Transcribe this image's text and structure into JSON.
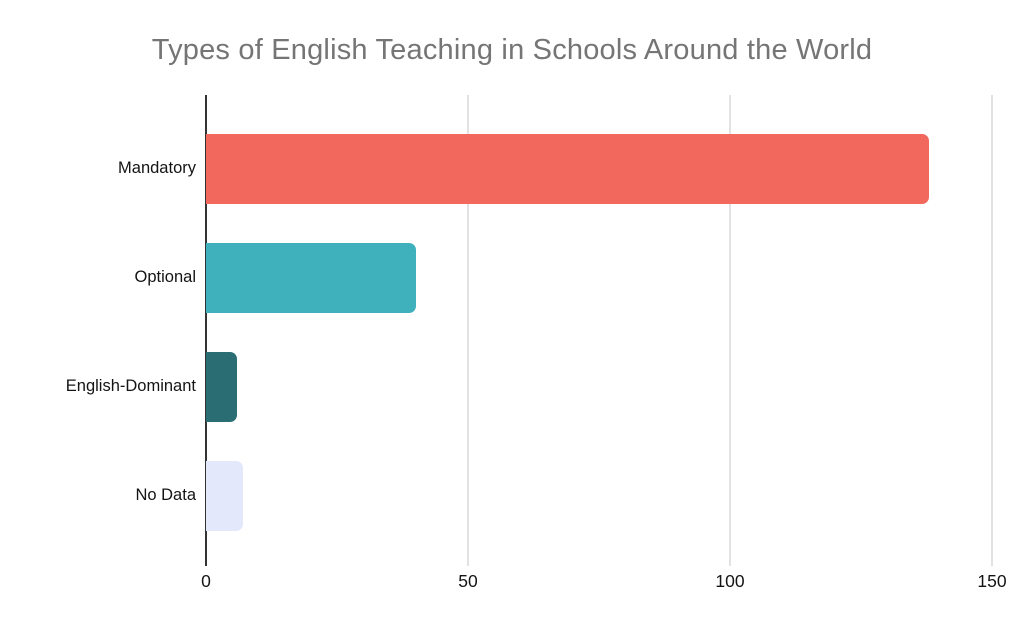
{
  "chart_data": {
    "type": "bar",
    "orientation": "horizontal",
    "title": "Types of English Teaching in Schools Around the World",
    "categories": [
      "Mandatory",
      "Optional",
      "English-Dominant",
      "No Data"
    ],
    "values": [
      138,
      40,
      6,
      7
    ],
    "xlabel": "",
    "ylabel": "",
    "xlim": [
      0,
      150
    ],
    "x_ticks": [
      0,
      50,
      100,
      150
    ],
    "grid": "vertical-only",
    "legend_position": "none",
    "bar_colors": [
      "#F3685D",
      "#3EB1BC",
      "#2A6E73",
      "#E3E9FA"
    ],
    "colors": {
      "background": "#FFFFFF",
      "title": "#757575",
      "axis_line": "#333333",
      "gridline": "#E2E2E2",
      "tick_label": "#141414",
      "category_label": "#141414"
    }
  }
}
